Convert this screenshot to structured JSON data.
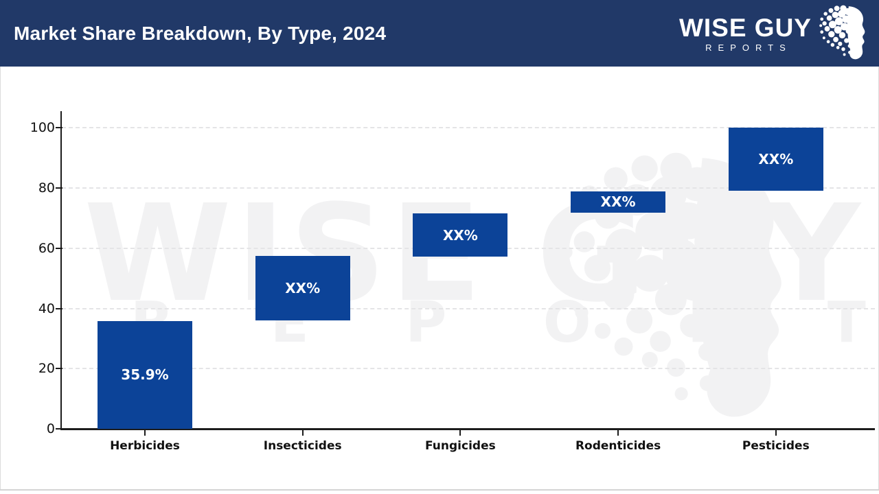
{
  "header": {
    "title": "Market Share Breakdown, By Type, 2024",
    "bg_color": "#213968",
    "title_color": "#ffffff",
    "logo": {
      "line1": "WISE GUY",
      "line2": "REPORTS",
      "icon": "dotted-face-profile"
    }
  },
  "watermark": {
    "line1": "WISE GUY",
    "line2": "R E P O R T S",
    "color": "#f2f2f3"
  },
  "footer": {
    "divider_color": "#d4d4d4"
  },
  "chart_data": {
    "type": "bar",
    "variant": "waterfall",
    "title": "Market Share Breakdown, By Type, 2024",
    "categories": [
      "Herbicides",
      "Insecticides",
      "Fungicides",
      "Rodenticides",
      "Pesticides"
    ],
    "segments": [
      {
        "category": "Herbicides",
        "start": 0,
        "end": 35.9,
        "label": "35.9%"
      },
      {
        "category": "Insecticides",
        "start": 35.9,
        "end": 57.5,
        "label": "XX%"
      },
      {
        "category": "Fungicides",
        "start": 57.2,
        "end": 71.5,
        "label": "XX%"
      },
      {
        "category": "Rodenticides",
        "start": 71.8,
        "end": 78.9,
        "label": "XX%"
      },
      {
        "category": "Pesticides",
        "start": 79.0,
        "end": 100.0,
        "label": "XX%"
      }
    ],
    "xlabel": "",
    "ylabel": "",
    "ylim": [
      0,
      105
    ],
    "yticks": [
      0,
      20,
      40,
      60,
      80,
      100
    ],
    "grid": "horizontal-dashed",
    "legend": "none",
    "bar_color": "#0c4398",
    "bar_label_color": "#ffffff",
    "axis_color": "#1c1c1c"
  }
}
